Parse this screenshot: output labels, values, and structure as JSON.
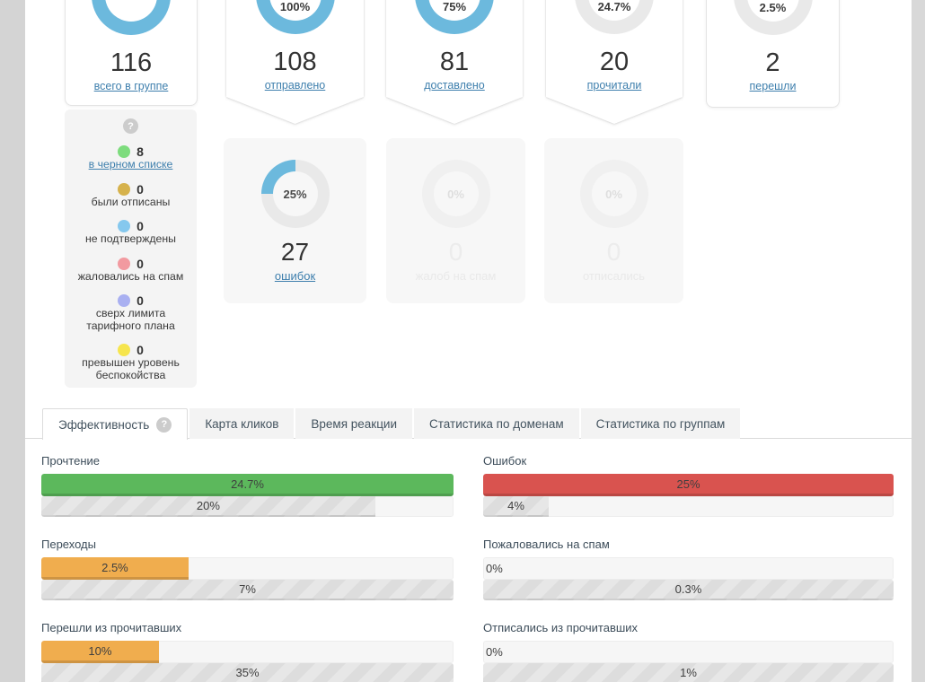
{
  "colors": {
    "donut_blue": "#6cb9dd",
    "donut_track": "#e9e9e9",
    "donut_track_faded": "#f0f0f0",
    "link_blue": "#3e7fad"
  },
  "help_icon": "?",
  "funnel_cards": [
    {
      "percent": "",
      "pct": 100,
      "value": "116",
      "label": "всего в группе"
    },
    {
      "percent": "100%",
      "pct": 100,
      "value": "108",
      "label": "отправлено"
    },
    {
      "percent": "75%",
      "pct": 75,
      "value": "81",
      "label": "доставлено"
    },
    {
      "percent": "24.7%",
      "pct": 24.7,
      "value": "20",
      "label": "прочитали"
    },
    {
      "percent": "2.5%",
      "pct": 2.5,
      "value": "2",
      "label": "перешли"
    }
  ],
  "breakdown": {
    "items": [
      {
        "dot_color": "#7ddc7d",
        "count": "8",
        "label": "в черном списке"
      },
      {
        "dot_color": "#d6b24c",
        "count": "0",
        "label": "были отписаны"
      },
      {
        "dot_color": "#85c8ee",
        "count": "0",
        "label": "не подтверждены"
      },
      {
        "dot_color": "#f29aa0",
        "count": "0",
        "label": "жаловались на спам"
      },
      {
        "dot_color": "#a9b0f1",
        "count": "0",
        "label": "сверх лимита тарифного плана"
      },
      {
        "dot_color": "#f6e54d",
        "count": "0",
        "label": "превышен уровень беспокойства"
      }
    ]
  },
  "secondary_cards": [
    {
      "percent": "25%",
      "pct": 25,
      "value": "27",
      "label": "ошибок"
    },
    {
      "percent": "0%",
      "pct": 0,
      "value": "0",
      "label": "жалоб на спам"
    },
    {
      "percent": "0%",
      "pct": 0,
      "value": "0",
      "label": "отписались"
    }
  ],
  "tabs": [
    {
      "label": "Эффективность"
    },
    {
      "label": "Карта кликов"
    },
    {
      "label": "Время реакции"
    },
    {
      "label": "Статистика по доменам"
    },
    {
      "label": "Статистика по группам"
    }
  ],
  "metrics": {
    "left": [
      {
        "title": "Прочтение",
        "value_label": "24.7%",
        "value_width": 100,
        "bar_color": "#5cb85c",
        "avg_label": "20%",
        "avg_width": 81
      },
      {
        "title": "Переходы",
        "value_label": "2.5%",
        "value_width": 35.7,
        "bar_color": "#f0ad4e",
        "avg_label": "7%",
        "avg_width": 100
      },
      {
        "title": "Перешли из прочитавших",
        "value_label": "10%",
        "value_width": 28.5,
        "bar_color": "#f0ad4e",
        "avg_label": "35%",
        "avg_width": 100
      }
    ],
    "right": [
      {
        "title": "Ошибок",
        "value_label": "25%",
        "value_width": 100,
        "bar_color": "#d9534f",
        "avg_label": "4%",
        "avg_width": 16
      },
      {
        "title": "Пожаловались на спам",
        "value_label": "0%",
        "value_width": 0,
        "bar_color": "",
        "avg_label": "0.3%",
        "avg_width": 100
      },
      {
        "title": "Отписались из прочитавших",
        "value_label": "0%",
        "value_width": 0,
        "bar_color": "",
        "avg_label": "1%",
        "avg_width": 100
      }
    ]
  }
}
